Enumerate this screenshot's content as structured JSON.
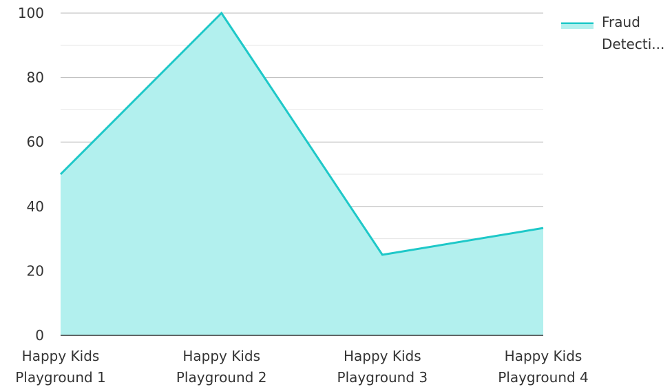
{
  "chart_data": {
    "type": "area",
    "categories": [
      [
        "Happy Kids",
        "Playground 1"
      ],
      [
        "Happy Kids",
        "Playground 2"
      ],
      [
        "Happy Kids",
        "Playground 3"
      ],
      [
        "Happy Kids",
        "Playground 4"
      ]
    ],
    "series": [
      {
        "name": "Fraud Detecti...",
        "values": [
          50,
          100,
          25,
          33.3
        ],
        "line_color": "#1ec8c8",
        "fill_color": "#b2f0ee"
      }
    ],
    "ylim": [
      0,
      100
    ],
    "yticks": [
      "0",
      "20",
      "40",
      "60",
      "80",
      "100"
    ],
    "title": "",
    "xlabel": "",
    "ylabel": "",
    "grid": true,
    "legend_position": "top-right",
    "legend_lines": [
      "Fraud",
      "Detecti..."
    ]
  }
}
